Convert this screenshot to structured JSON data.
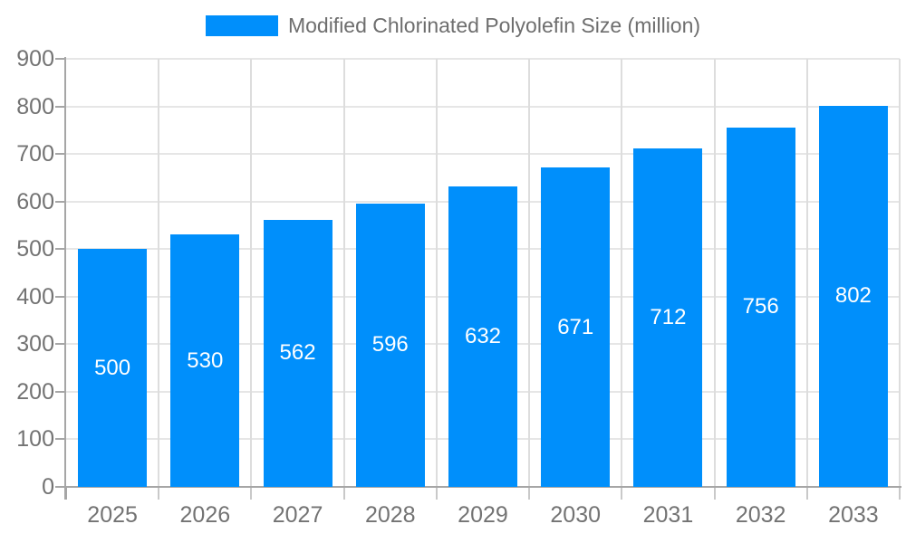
{
  "chart_data": {
    "type": "bar",
    "title": "Modified Chlorinated Polyolefin Size (million)",
    "series_name": "Modified Chlorinated Polyolefin Size (million)",
    "categories": [
      "2025",
      "2026",
      "2027",
      "2028",
      "2029",
      "2030",
      "2031",
      "2032",
      "2033"
    ],
    "values": [
      500,
      530,
      562,
      596,
      632,
      671,
      712,
      756,
      802
    ],
    "xlabel": "",
    "ylabel": "",
    "ylim": [
      0,
      900
    ],
    "ytick_step": 100,
    "ytick_labels": [
      "0",
      "100",
      "200",
      "300",
      "400",
      "500",
      "600",
      "700",
      "800",
      "900"
    ],
    "grid": true,
    "legend_position": "top",
    "bar_label_placement": "inside-center"
  },
  "legend": {
    "label": "Modified Chlorinated Polyolefin Size (million)"
  },
  "colors": {
    "bar": "#008FFB",
    "axis": "#a6a6a6",
    "grid_h": "#e6e6e6",
    "grid_v": "#dddddd",
    "tick": "#c9c9c9",
    "tick_label": "#737373",
    "legend_text": "#6e6e6e",
    "bar_label": "#ffffff",
    "background": "#ffffff"
  }
}
